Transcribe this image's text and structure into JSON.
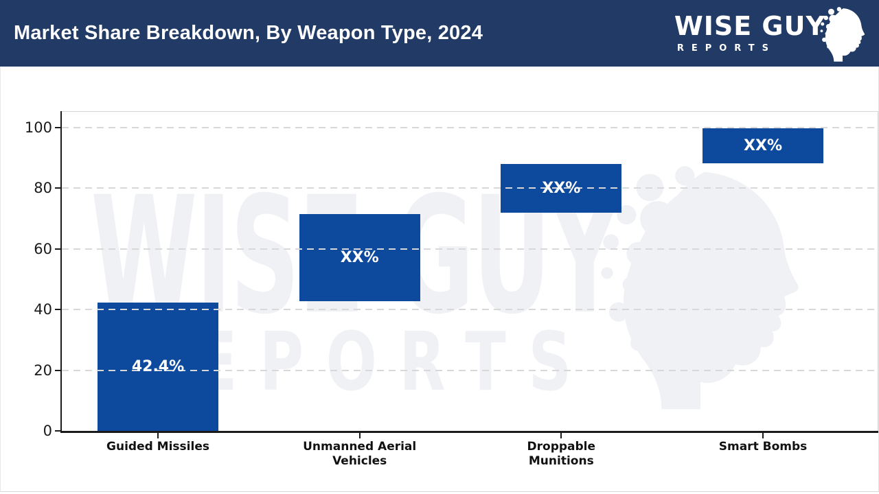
{
  "header": {
    "title": "Market Share Breakdown, By Weapon Type, 2024",
    "brand": {
      "name": "WISE GUY",
      "sub": "REPORTS"
    },
    "bg_color": "#213A66"
  },
  "watermark": {
    "line1": "WISE GUY",
    "line2": "REPORTS"
  },
  "chart_data": {
    "type": "bar",
    "subtype": "waterfall",
    "title": "Market Share Breakdown, By Weapon Type, 2024",
    "categories": [
      "Guided Missiles",
      "Unmanned Aerial\nVehicles",
      "Droppable\nMunitions",
      "Smart Bombs"
    ],
    "segments": [
      {
        "category": "Guided Missiles",
        "start": 0,
        "end": 42.4,
        "label": "42.4%"
      },
      {
        "category": "Unmanned Aerial Vehicles",
        "start": 42.7,
        "end": 71.6,
        "label": "XX%"
      },
      {
        "category": "Droppable Munitions",
        "start": 71.9,
        "end": 88.1,
        "label": "XX%"
      },
      {
        "category": "Smart Bombs",
        "start": 88.3,
        "end": 99.7,
        "label": "XX%"
      }
    ],
    "ylim": [
      0,
      105
    ],
    "yticks": [
      0,
      20,
      40,
      60,
      80,
      100
    ],
    "grid": "dashed-horizontal",
    "legend": "none",
    "bar_color": "#0D4A9E",
    "bar_label_color": "#FFFFFF",
    "axis_color": "#1a1a1a"
  }
}
